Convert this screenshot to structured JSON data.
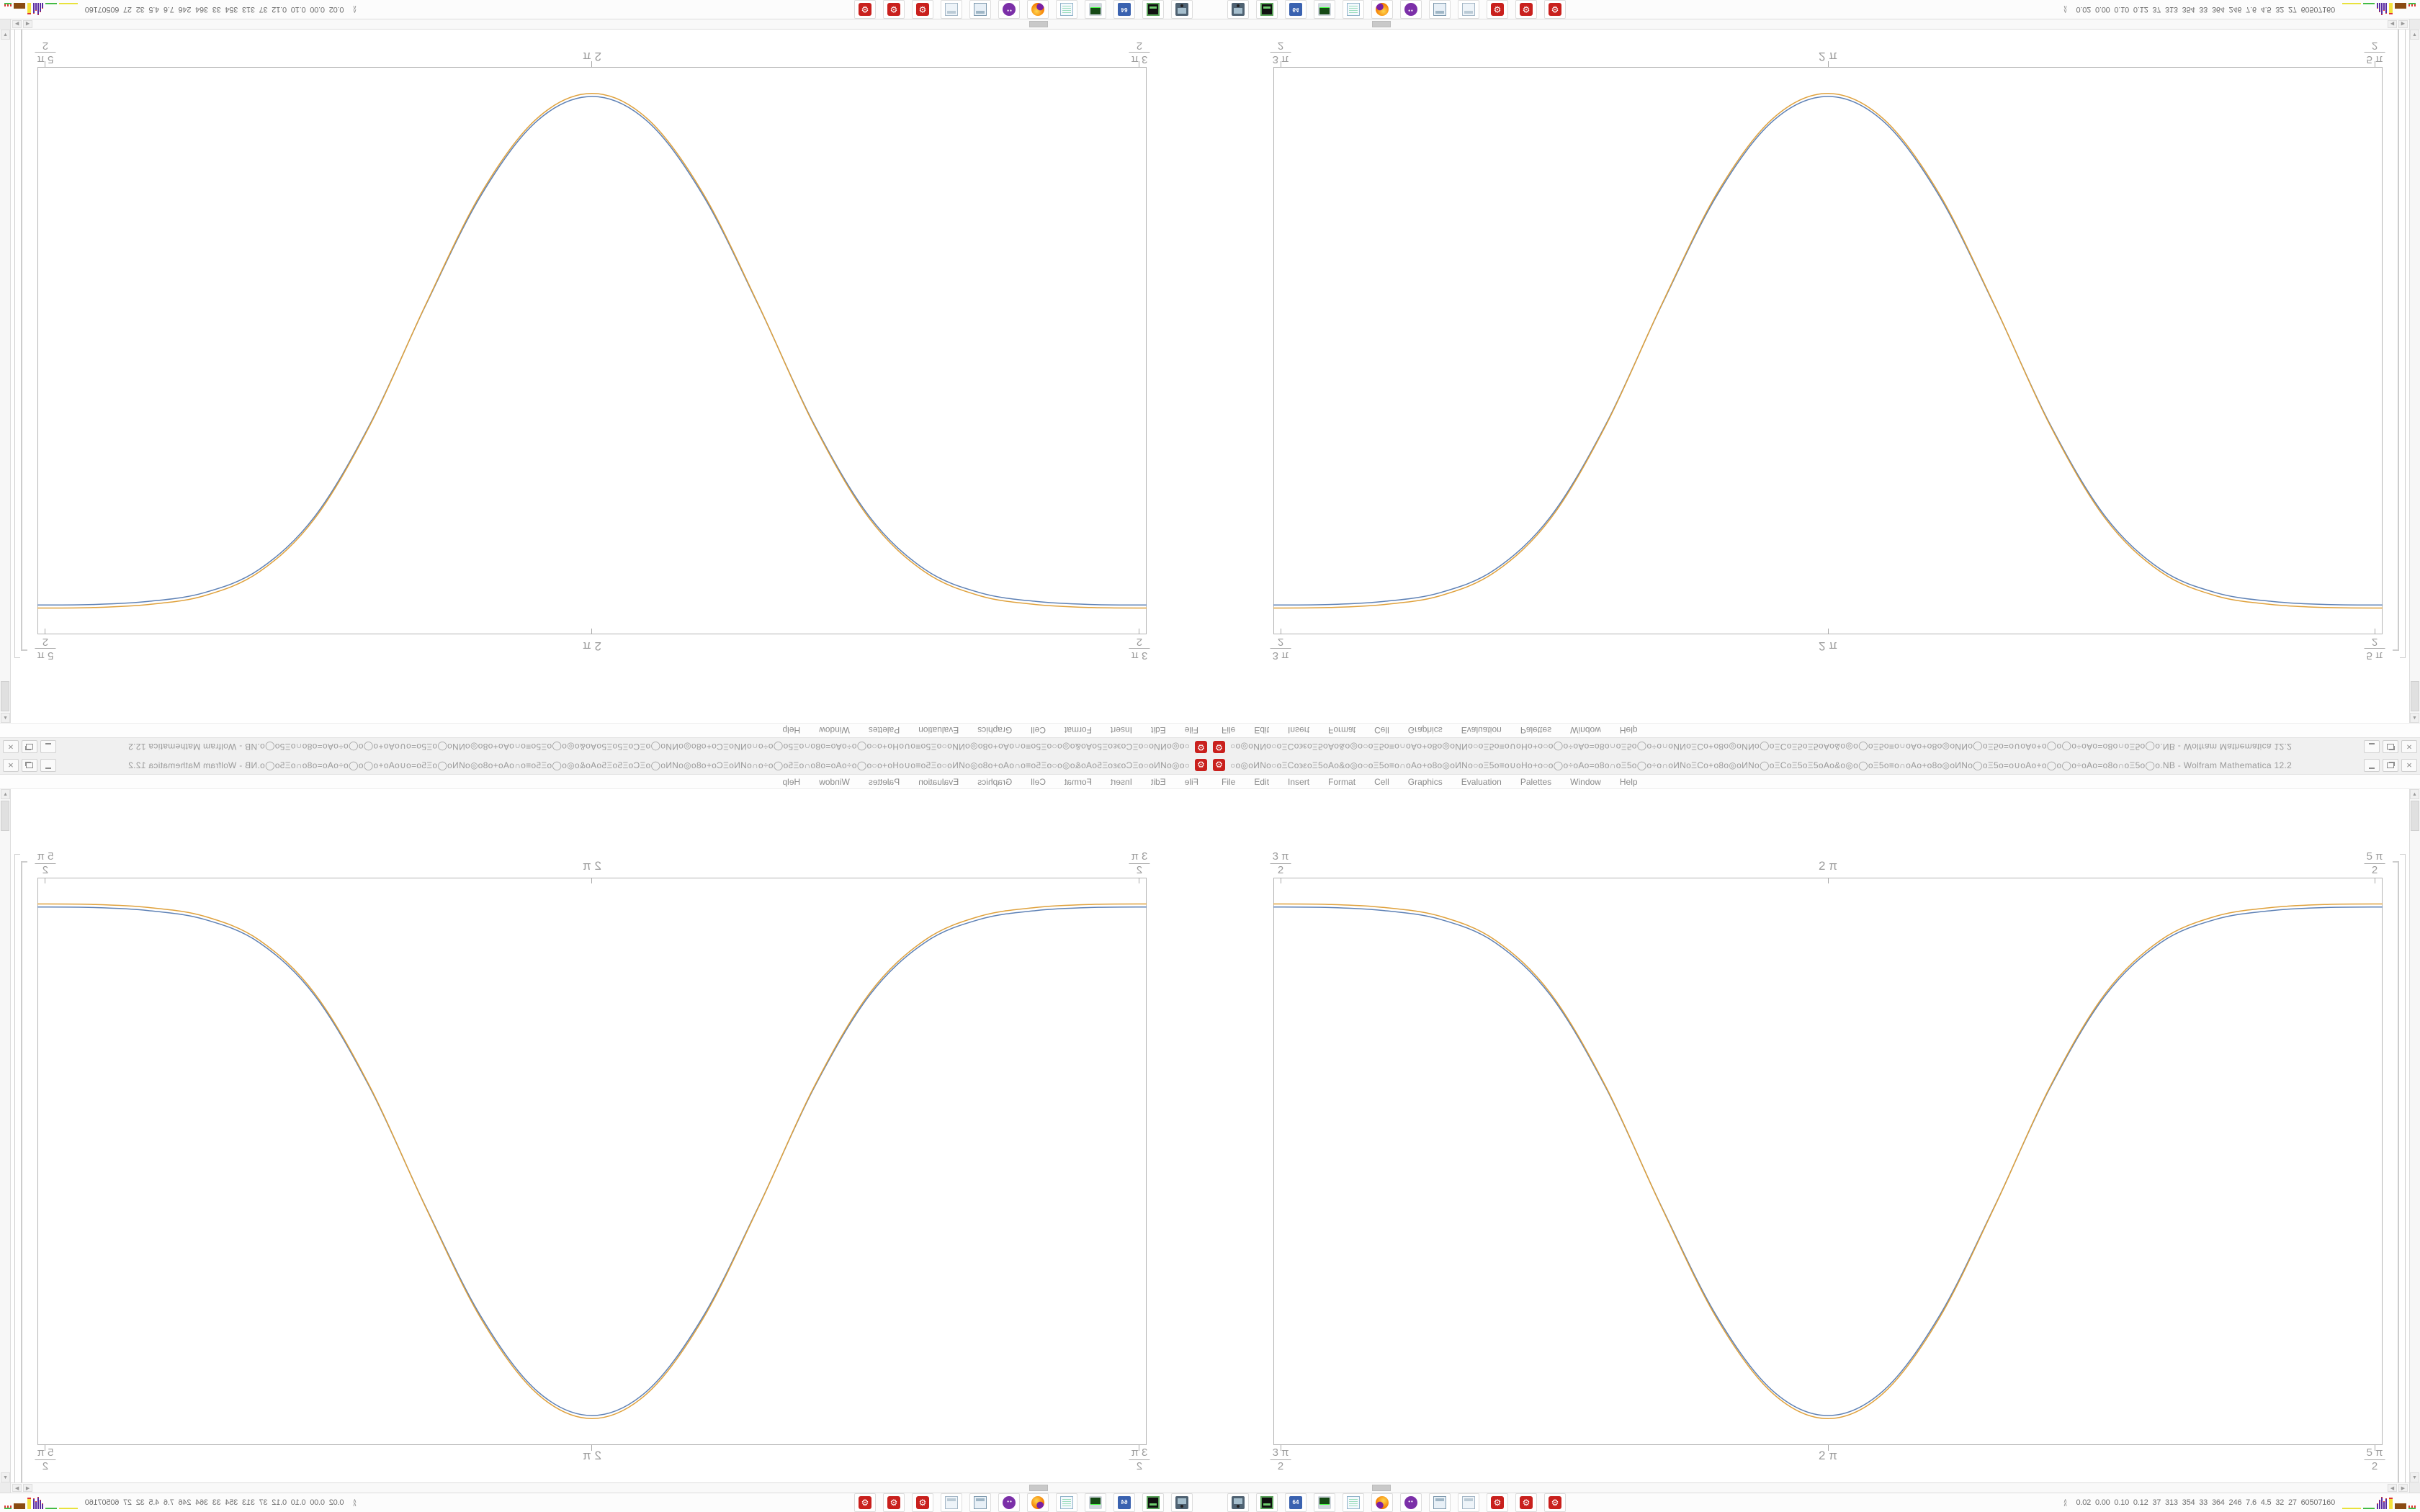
{
  "window": {
    "title": "○o◎oИNo○oΞCo϶εoΞ5oΑo&o◎o○oΞ5o≡o∩oΑo+o8o◎oИNo○oΞ5o≡o∪oΗo+o○o◯o÷oΑo=o8o∩oΞ5o◯o÷o∩oИNoΞCo+o8o◎oИNo◯oΞCoΞ5oΞ5oΑo&o◎o◯oΞ5o≡o∩oΑo+o8o◎oИNo◯oΞ5o=o∪oΑo+o◯o◯o÷oΑo=o8o∩oΞ5o◯o.NB - Wolfram Mathematica 12.2",
    "app_name": "Wolfram Mathematica 12.2",
    "menu_items": [
      "File",
      "Edit",
      "Insert",
      "Format",
      "Cell",
      "Graphics",
      "Evaluation",
      "Palettes",
      "Window",
      "Help"
    ],
    "controls": {
      "minimize": "",
      "maximize": "",
      "close": "×"
    }
  },
  "chart_data": {
    "type": "line",
    "title": "",
    "xlabel": "",
    "ylabel": "",
    "x_domain_labels": [
      "3π/2",
      "5π/2"
    ],
    "x_center_label": "2π",
    "x_ticks": [
      {
        "pos": 0,
        "num": "3 π",
        "den": "2"
      },
      {
        "pos": 0.5,
        "text": "2 π"
      },
      {
        "pos": 1,
        "num": "5 π",
        "den": "2"
      }
    ],
    "frame": true,
    "grid": false,
    "legend": "none",
    "t": [
      0,
      0.05,
      0.1,
      0.15,
      0.2,
      0.25,
      0.3,
      0.35,
      0.4,
      0.45,
      0.5,
      0.55,
      0.6,
      0.65,
      0.7,
      0.75,
      0.8,
      0.85,
      0.9,
      0.95,
      1
    ],
    "series": [
      {
        "name": "curve-blue",
        "color": "#5E81B5",
        "y": [
          0.999,
          0.998,
          0.992,
          0.975,
          0.929,
          0.825,
          0.643,
          0.41,
          0.194,
          0.049,
          0.0,
          0.049,
          0.194,
          0.41,
          0.643,
          0.825,
          0.929,
          0.975,
          0.992,
          0.998,
          0.999
        ]
      },
      {
        "name": "curve-yellow",
        "color": "#DFA13C",
        "y": [
          1.005,
          1.004,
          0.998,
          0.981,
          0.934,
          0.829,
          0.645,
          0.409,
          0.19,
          0.044,
          -0.006,
          0.044,
          0.19,
          0.409,
          0.645,
          0.829,
          0.934,
          0.981,
          0.998,
          1.004,
          1.005
        ]
      }
    ],
    "note": "Two nearly coincident smooth step-like curves: high flat plateaus near x=3π/2 and x=5π/2, smooth flat minimum centered at x=2π. Screen shown 4x: normal, mirrored-x, mirrored-y, rotated 180°."
  },
  "taskbar": {
    "icons": [
      {
        "name": "screenshot-tool-icon"
      },
      {
        "name": "disk-utility-icon"
      },
      {
        "name": "floppy-64-icon",
        "label": "64"
      },
      {
        "name": "system-monitor-icon"
      },
      {
        "name": "notepad-icon"
      },
      {
        "name": "firefox-icon"
      },
      {
        "name": "purple-mascot-icon",
        "label": "••"
      },
      {
        "name": "calculator-icon"
      },
      {
        "name": "calculator-alt-icon"
      },
      {
        "name": "mathematica-kernel-icon",
        "label": "⚙"
      },
      {
        "name": "mathematica-kernel-icon-2",
        "label": "⚙"
      },
      {
        "name": "mathematica-kernel-icon-3",
        "label": "⚙"
      }
    ],
    "status_chevron": "∧",
    "status_values": "0.02 0.00 0.10 0.12 37 313 354 33 364 246 7.6 4.5 32 27 60507160",
    "graphs": [
      "yellow-strip",
      "green-strip",
      "purple-bars",
      "yellow-candle",
      "brown-block",
      "red-green-dots"
    ]
  },
  "screens": [
    {
      "name": "screen-top-left",
      "orientation": "rotated-180"
    },
    {
      "name": "screen-top-right",
      "orientation": "flipped-vertical"
    },
    {
      "name": "screen-bottom-left",
      "orientation": "mirrored-horizontal"
    },
    {
      "name": "screen-bottom-right",
      "orientation": "normal"
    }
  ]
}
